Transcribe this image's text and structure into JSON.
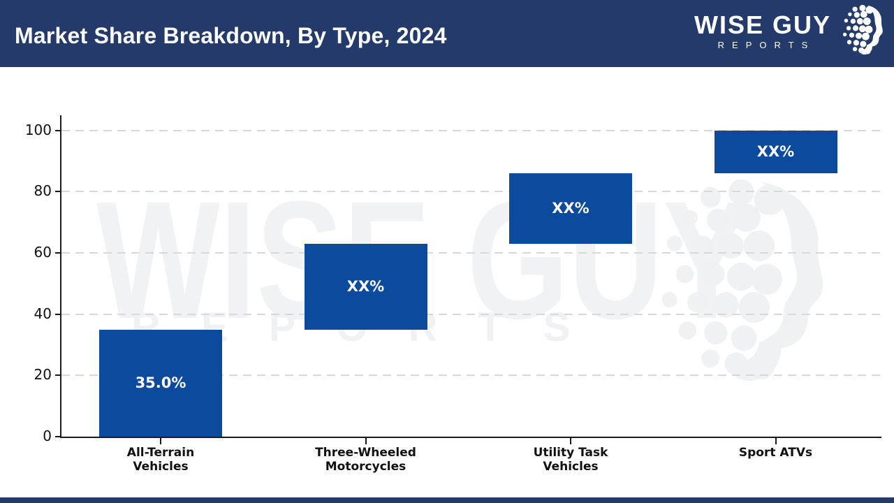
{
  "header": {
    "title": "Market Share Breakdown, By Type, 2024",
    "logo": {
      "line1": "WISE GUY",
      "line2": "REPORTS"
    }
  },
  "watermark": {
    "line1": "WISE GUY",
    "line2": "REPORTS"
  },
  "colors": {
    "header_bg": "#233A6B",
    "footer_bg": "#233A6B",
    "bar": "#0C4A9E",
    "grid": "#D8D8D8",
    "axis": "#1A1A1A",
    "bar_label": "#FFFFFF",
    "watermark": "#F0F1F3"
  },
  "chart_data": {
    "type": "bar",
    "subtype": "floating-waterfall",
    "title": "Market Share Breakdown, By Type, 2024",
    "categories": [
      "All-Terrain\nVehicles",
      "Three-Wheeled\nMotorcycles",
      "Utility Task\nVehicles",
      "Sport ATVs"
    ],
    "segments": [
      {
        "category": "All-Terrain Vehicles",
        "start": 0,
        "end": 35,
        "value": 35,
        "label": "35.0%"
      },
      {
        "category": "Three-Wheeled Motorcycles",
        "start": 35,
        "end": 63,
        "value": 28,
        "label": "XX%"
      },
      {
        "category": "Utility Task Vehicles",
        "start": 63,
        "end": 86,
        "value": 23,
        "label": "XX%"
      },
      {
        "category": "Sport ATVs",
        "start": 86,
        "end": 100,
        "value": 14,
        "label": "XX%"
      }
    ],
    "y_ticks": [
      0,
      20,
      40,
      60,
      80,
      100
    ],
    "ylim": [
      0,
      105
    ],
    "xlabel": "",
    "ylabel": "",
    "grid": "horizontal-dashed",
    "legend": "none"
  }
}
